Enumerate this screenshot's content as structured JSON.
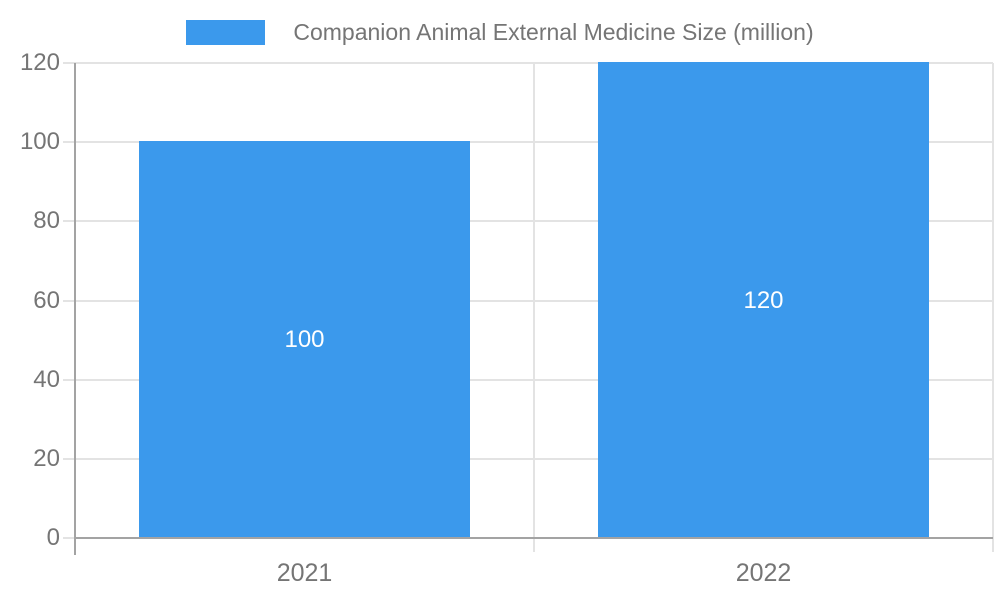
{
  "legend": {
    "label": "Companion Animal External Medicine Size (million)"
  },
  "chart_data": {
    "type": "bar",
    "title": "",
    "xlabel": "",
    "ylabel": "",
    "categories": [
      "2021",
      "2022"
    ],
    "series": [
      {
        "name": "Companion Animal External Medicine Size (million)",
        "values": [
          100,
          120
        ]
      }
    ],
    "bar_value_labels": [
      "100",
      "120"
    ],
    "ylim": [
      0,
      120
    ],
    "yticks": [
      0,
      20,
      40,
      60,
      80,
      100,
      120
    ],
    "grid": true,
    "legend_position": "top",
    "colors": {
      "bar": "#3B99EC",
      "grid": "#E3E3E3",
      "axis": "#A3A3A3",
      "text": "#757575",
      "bar_label": "#FFFFFF"
    }
  }
}
